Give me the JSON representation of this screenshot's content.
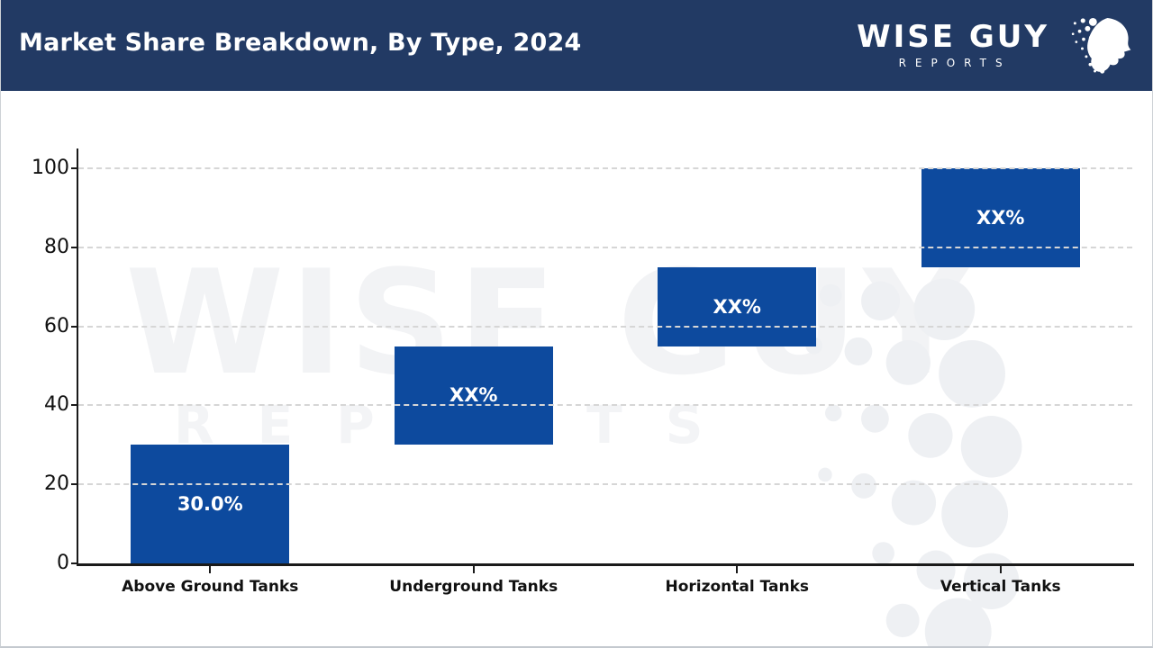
{
  "header": {
    "title": "Market Share Breakdown, By Type, 2024",
    "logo": {
      "name": "WISE GUY",
      "subtitle": "REPORTS"
    }
  },
  "watermark": {
    "line1": "WISE GUY",
    "line2": "REPORTS"
  },
  "chart_data": {
    "type": "bar",
    "subtype": "floating-segment-waterfall",
    "title": "Market Share Breakdown, By Type, 2024",
    "categories": [
      "Above Ground Tanks",
      "Underground Tanks",
      "Horizontal Tanks",
      "Vertical Tanks"
    ],
    "segments": [
      {
        "start": 0,
        "end": 30,
        "label": "30.0%"
      },
      {
        "start": 30,
        "end": 55,
        "label": "XX%"
      },
      {
        "start": 55,
        "end": 75,
        "label": "XX%"
      },
      {
        "start": 75,
        "end": 100,
        "label": "XX%"
      }
    ],
    "yticks": [
      0,
      20,
      40,
      60,
      80,
      100
    ],
    "ylim": [
      0,
      105
    ],
    "xlabel": "",
    "ylabel": "",
    "grid": "horizontal-dashed",
    "legend": "none",
    "bar_color": "#0d4a9e",
    "bar_label_color": "#ffffff",
    "header_color": "#223a64"
  }
}
